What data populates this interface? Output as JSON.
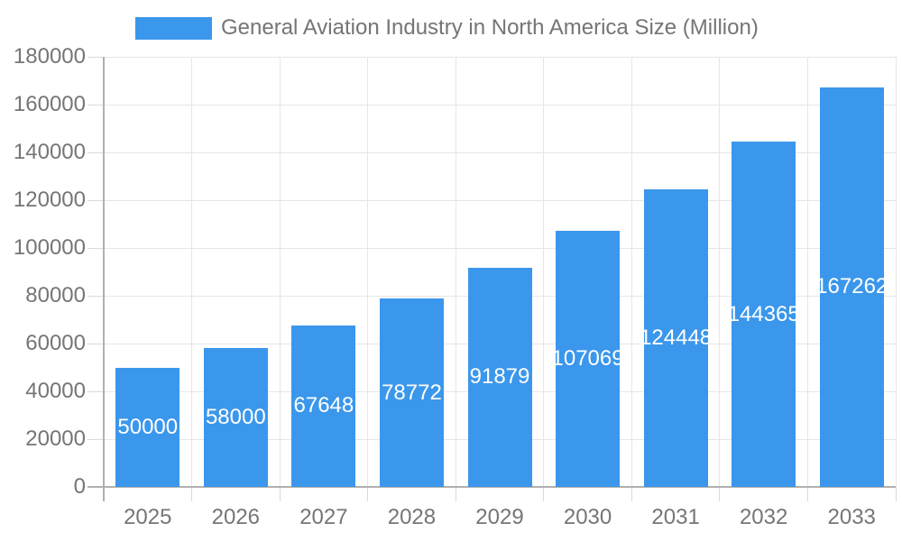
{
  "legend": {
    "label": "General Aviation Industry in North America Size (Million)"
  },
  "chart_data": {
    "type": "bar",
    "title": "General Aviation Industry in North America Size (Million)",
    "categories": [
      "2025",
      "2026",
      "2027",
      "2028",
      "2029",
      "2030",
      "2031",
      "2032",
      "2033"
    ],
    "values": [
      50000,
      58000,
      67648,
      78772,
      91879,
      107069,
      124448,
      144365,
      167262
    ],
    "series_name": "General Aviation Industry in North America Size (Million)",
    "xlabel": "",
    "ylabel": "",
    "ylim": [
      0,
      180000
    ],
    "yticks": [
      0,
      20000,
      40000,
      60000,
      80000,
      100000,
      120000,
      140000,
      160000,
      180000
    ],
    "grid": "both",
    "legend_position": "top-center",
    "value_labels": "inside-center"
  },
  "colors": {
    "bar": "#3b97eb",
    "bar_label": "#ffffff",
    "text": "#757575",
    "grid": "#e6e6e6",
    "axis": "#b0b0b0",
    "tick": "#d9d9d9",
    "background": "#ffffff"
  }
}
